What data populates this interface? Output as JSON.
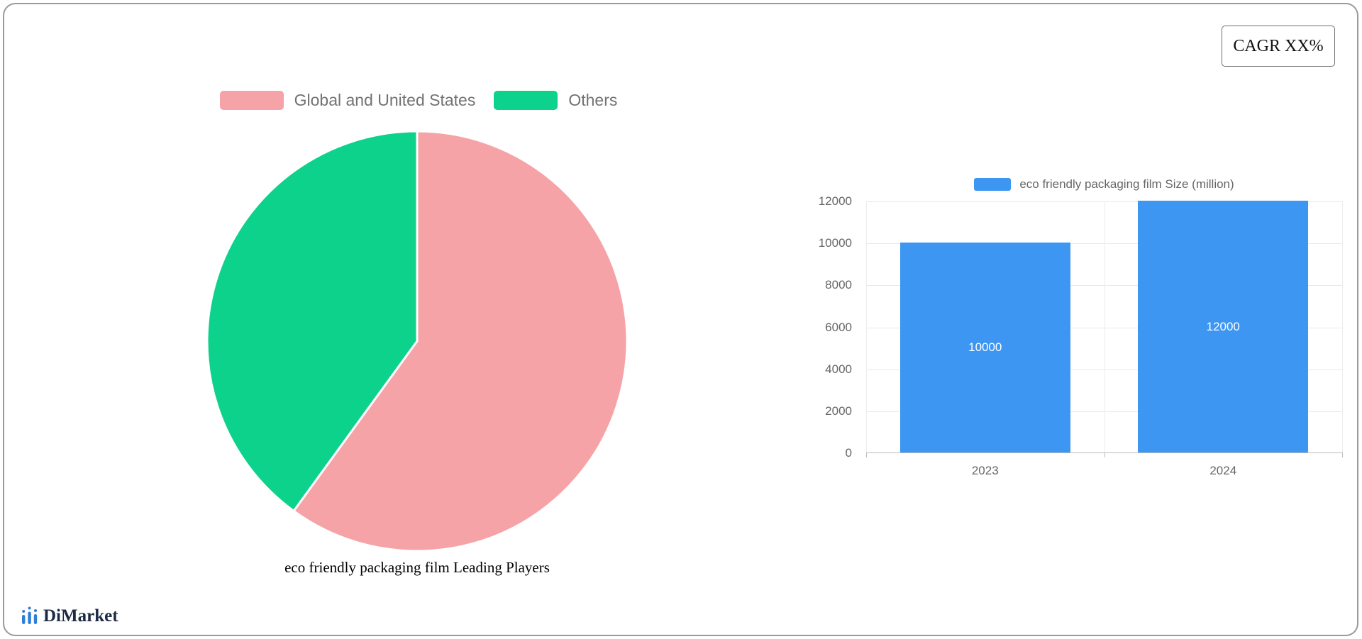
{
  "header": {
    "cagr_label": "CAGR XX%"
  },
  "brand": {
    "logo_text": "DiMarket",
    "logo_text_color": "#1c2b45",
    "logo_icon_color": "#2e7fd6"
  },
  "chart_data": [
    {
      "type": "pie",
      "title": "eco friendly packaging film Leading Players",
      "legend_position": "top",
      "start_angle": -90,
      "direction": "clockwise",
      "slices": [
        {
          "label": "Global and United States",
          "value": 60,
          "color": "#F5A3A6"
        },
        {
          "label": "Others",
          "value": 40,
          "color": "#0CD28C"
        }
      ]
    },
    {
      "type": "bar",
      "categories": [
        "2023",
        "2024"
      ],
      "series": [
        {
          "name": "eco friendly packaging film Size (million)",
          "values": [
            10000,
            12000
          ],
          "color": "#3C96F2"
        }
      ],
      "ylim": [
        0,
        12000
      ],
      "yticks": [
        0,
        2000,
        4000,
        6000,
        8000,
        10000,
        12000
      ],
      "grid": true,
      "legend_position": "top",
      "value_labels": "inside-center",
      "value_label_color": "#ffffff"
    }
  ]
}
